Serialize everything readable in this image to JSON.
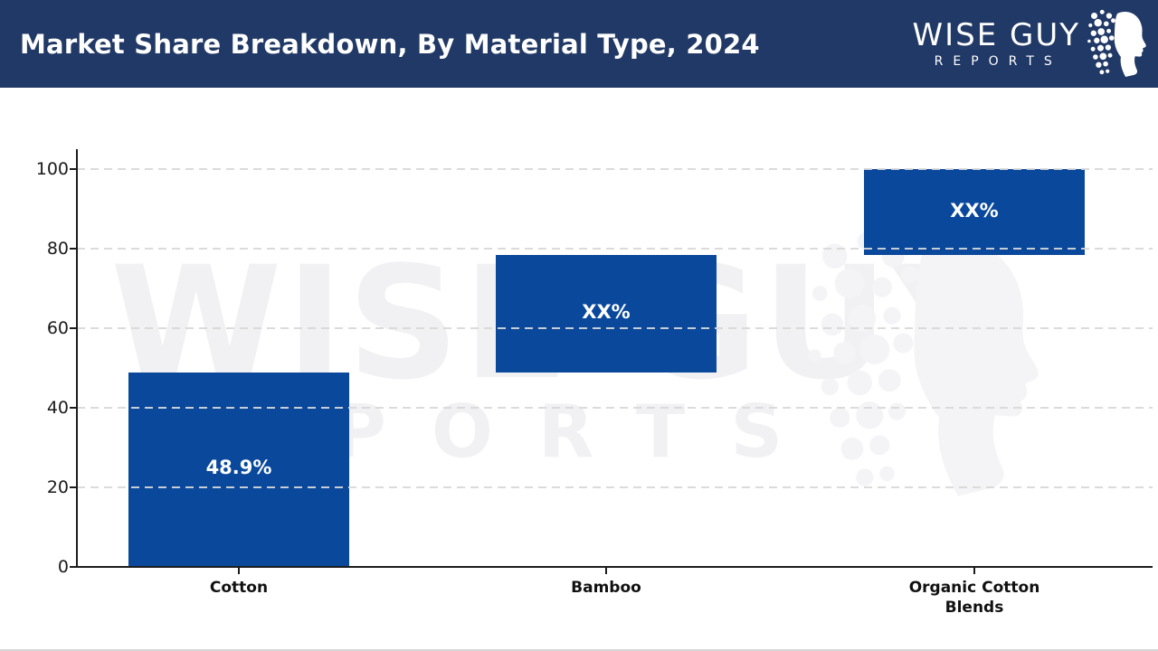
{
  "header": {
    "title": "Market Share Breakdown, By Material Type, 2024",
    "logo": {
      "line1": "WISE GUY",
      "line2": "REPORTS"
    }
  },
  "watermark": {
    "line1": "WISE GUY",
    "line2": "REPORTS"
  },
  "colors": {
    "header_bg": "#213966",
    "bar": "#0a489c",
    "axis": "#1c1c1c",
    "grid": "#d9d9d9",
    "watermark_text": "#f1f1f3",
    "watermark_face": "#f4f4f6",
    "bar_label": "#ffffff",
    "title_text": "#ffffff"
  },
  "chart_data": {
    "type": "bar",
    "subtype": "waterfall",
    "title": "Market Share Breakdown, By Material Type, 2024",
    "categories": [
      "Cotton",
      "Bamboo",
      "Organic Cotton Blends"
    ],
    "bars": [
      {
        "category": "Cotton",
        "start": 0,
        "end": 48.9,
        "label": "48.9%"
      },
      {
        "category": "Bamboo",
        "start": 48.9,
        "end": 78.4,
        "label": "XX%"
      },
      {
        "category": "Organic Cotton Blends",
        "start": 78.4,
        "end": 100,
        "label": "XX%"
      }
    ],
    "ylim": [
      0,
      100
    ],
    "yticks": [
      0,
      20,
      40,
      60,
      80,
      100
    ],
    "xlabel": "",
    "ylabel": "",
    "grid": "horizontal-dashed-over-bars",
    "legend": "none"
  }
}
